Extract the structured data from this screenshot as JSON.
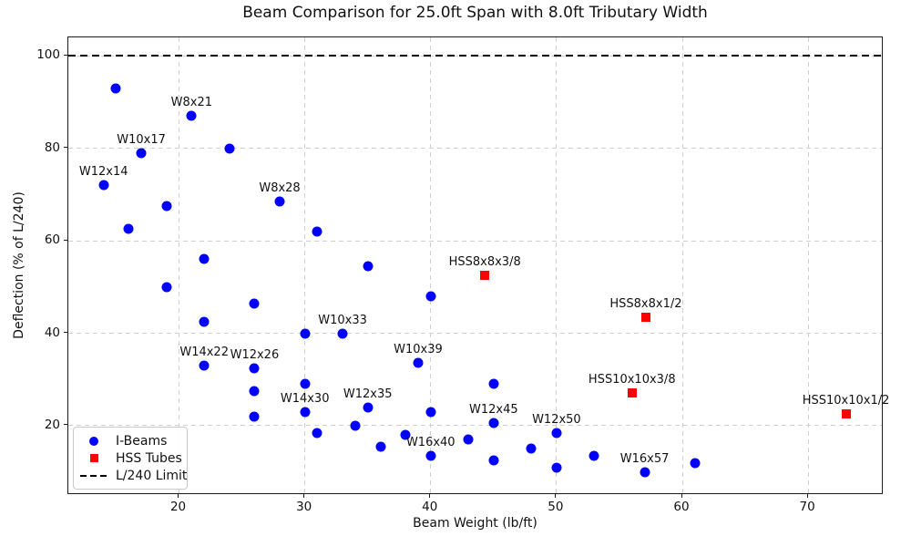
{
  "chart_data": {
    "type": "scatter",
    "title": "Beam Comparison for 25.0ft Span with 8.0ft Tributary Width",
    "xlabel": "Beam Weight (lb/ft)",
    "ylabel": "Deflection (% of L/240)",
    "xlim": [
      11.2,
      76.0
    ],
    "ylim": [
      5.0,
      104.0
    ],
    "x_ticks": [
      20,
      30,
      40,
      50,
      60,
      70
    ],
    "y_ticks": [
      20,
      40,
      60,
      80,
      100
    ],
    "grid": true,
    "grid_color": "#cfcfcf",
    "legend_position": "lower-left",
    "limit_line": {
      "y": 100,
      "label": "L/240 Limit",
      "color": "#000000",
      "style": "dashed"
    },
    "series": [
      {
        "name": "I-Beams",
        "marker": "circle",
        "color": "#0000ff",
        "points": [
          {
            "x": 15,
            "y": 93,
            "label": ""
          },
          {
            "x": 21,
            "y": 87,
            "label": "W8x21"
          },
          {
            "x": 24,
            "y": 80,
            "label": ""
          },
          {
            "x": 17,
            "y": 79,
            "label": "W10x17"
          },
          {
            "x": 14,
            "y": 72,
            "label": "W12x14"
          },
          {
            "x": 28,
            "y": 68.5,
            "label": "W8x28"
          },
          {
            "x": 19,
            "y": 67.5,
            "label": ""
          },
          {
            "x": 16,
            "y": 62.5,
            "label": ""
          },
          {
            "x": 31,
            "y": 62,
            "label": ""
          },
          {
            "x": 22,
            "y": 56,
            "label": ""
          },
          {
            "x": 35,
            "y": 54.5,
            "label": ""
          },
          {
            "x": 19,
            "y": 50,
            "label": ""
          },
          {
            "x": 40,
            "y": 48,
            "label": ""
          },
          {
            "x": 26,
            "y": 46.5,
            "label": ""
          },
          {
            "x": 22,
            "y": 42.5,
            "label": ""
          },
          {
            "x": 30,
            "y": 40,
            "label": ""
          },
          {
            "x": 33,
            "y": 40,
            "label": "W10x33"
          },
          {
            "x": 22,
            "y": 33,
            "label": "W14x22"
          },
          {
            "x": 26,
            "y": 32.5,
            "label": "W12x26"
          },
          {
            "x": 39,
            "y": 33.5,
            "label": "W10x39"
          },
          {
            "x": 30,
            "y": 29,
            "label": ""
          },
          {
            "x": 26,
            "y": 27.5,
            "label": ""
          },
          {
            "x": 45,
            "y": 29,
            "label": ""
          },
          {
            "x": 30,
            "y": 23,
            "label": "W14x30"
          },
          {
            "x": 35,
            "y": 24,
            "label": "W12x35"
          },
          {
            "x": 26,
            "y": 22,
            "label": ""
          },
          {
            "x": 31,
            "y": 18.5,
            "label": ""
          },
          {
            "x": 34,
            "y": 20,
            "label": ""
          },
          {
            "x": 40,
            "y": 23,
            "label": ""
          },
          {
            "x": 45,
            "y": 20.5,
            "label": "W12x45"
          },
          {
            "x": 36,
            "y": 15.5,
            "label": ""
          },
          {
            "x": 38,
            "y": 18,
            "label": ""
          },
          {
            "x": 43,
            "y": 17,
            "label": ""
          },
          {
            "x": 40,
            "y": 13.5,
            "label": "W16x40"
          },
          {
            "x": 48,
            "y": 15,
            "label": ""
          },
          {
            "x": 50,
            "y": 18.5,
            "label": "W12x50"
          },
          {
            "x": 45,
            "y": 12.5,
            "label": ""
          },
          {
            "x": 50,
            "y": 11,
            "label": ""
          },
          {
            "x": 53,
            "y": 13.5,
            "label": ""
          },
          {
            "x": 57,
            "y": 10,
            "label": "W16x57"
          },
          {
            "x": 61,
            "y": 12,
            "label": ""
          }
        ]
      },
      {
        "name": "HSS Tubes",
        "marker": "square",
        "color": "#ff0000",
        "points": [
          {
            "x": 44.3,
            "y": 52.5,
            "label": "HSS8x8x3/8"
          },
          {
            "x": 57.1,
            "y": 43.5,
            "label": "HSS8x8x1/2"
          },
          {
            "x": 56,
            "y": 27,
            "label": "HSS10x10x3/8"
          },
          {
            "x": 73,
            "y": 22.5,
            "label": "HSS10x10x1/2"
          }
        ]
      }
    ],
    "legend_entries": [
      {
        "label": "I-Beams",
        "marker": "circle",
        "color": "#0000ff"
      },
      {
        "label": "HSS Tubes",
        "marker": "square",
        "color": "#ff0000"
      },
      {
        "label": "L/240 Limit",
        "marker": "dash",
        "color": "#000000"
      }
    ]
  }
}
